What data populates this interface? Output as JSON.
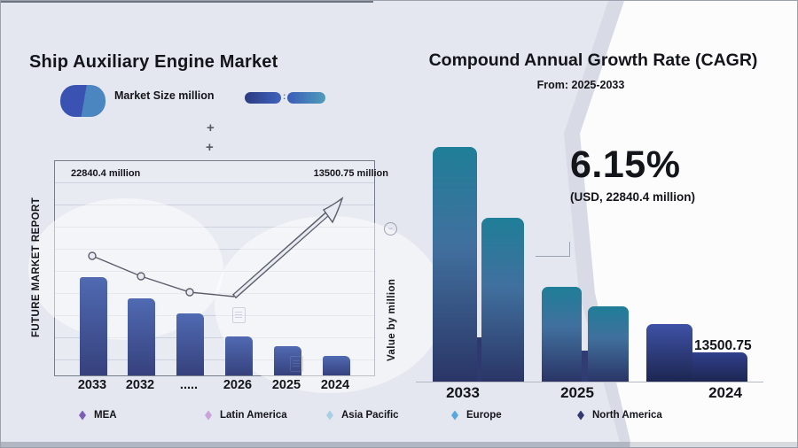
{
  "left": {
    "title": "Ship Auxiliary Engine Market",
    "legend_label": "Market Size million",
    "legend_colon": ":",
    "side_label": "FUTURE MARKET REPORT",
    "value_axis_label": "Value by million",
    "annotation_left": "22840.4 million",
    "annotation_right": "13500.75 million",
    "categories": [
      "2033",
      "2032",
      ".....",
      "2026",
      "2025",
      "2024"
    ]
  },
  "right": {
    "title": "Compound Annual Growth Rate (CAGR)",
    "subtitle": "From: 2025-2033",
    "cagr": "6.15%",
    "cagr_note": "(USD, 22840.4 million)",
    "bar_label": "13500.75",
    "categories": [
      "2033",
      "2025",
      "2024"
    ]
  },
  "icons": {
    "plus": "+",
    "minus": "−"
  },
  "footer": {
    "items": [
      {
        "label": "MEA",
        "color": "#7a5fb5"
      },
      {
        "label": "Latin America",
        "color": "#c9a3d9"
      },
      {
        "label": "Asia Pacific",
        "color": "#a9cfe8"
      },
      {
        "label": "Europe",
        "color": "#56a8e0"
      },
      {
        "label": "North America",
        "color": "#323a70"
      }
    ]
  },
  "chart_data": [
    {
      "type": "bar",
      "title": "Ship Auxiliary Engine Market — Market Size million",
      "categories": [
        "2033",
        "2032",
        ".....",
        "2026",
        "2025",
        "2024"
      ],
      "series": [
        {
          "name": "Market Size (relative bar height, px)",
          "values": [
            111,
            87,
            70,
            44,
            33,
            22
          ]
        }
      ],
      "annotations": [
        "22840.4 million",
        "13500.75 million"
      ],
      "ylabel": "Value by million",
      "overlay": "declining marker line with upward outlined arrow",
      "grid": true,
      "legend_position": "above"
    },
    {
      "type": "bar",
      "title": "Compound Annual Growth Rate (CAGR) 6.15% (USD, 22840.4 million), From: 2025-2033",
      "categories": [
        "2033",
        "2025",
        "2024"
      ],
      "series": [
        {
          "name": "primary (relative bar height, px)",
          "values": [
            265,
            107,
            65
          ]
        },
        {
          "name": "secondary (relative bar height, px)",
          "values": [
            185,
            85,
            33
          ]
        }
      ],
      "data_labels": [
        "13500.75"
      ],
      "grid": false
    }
  ]
}
